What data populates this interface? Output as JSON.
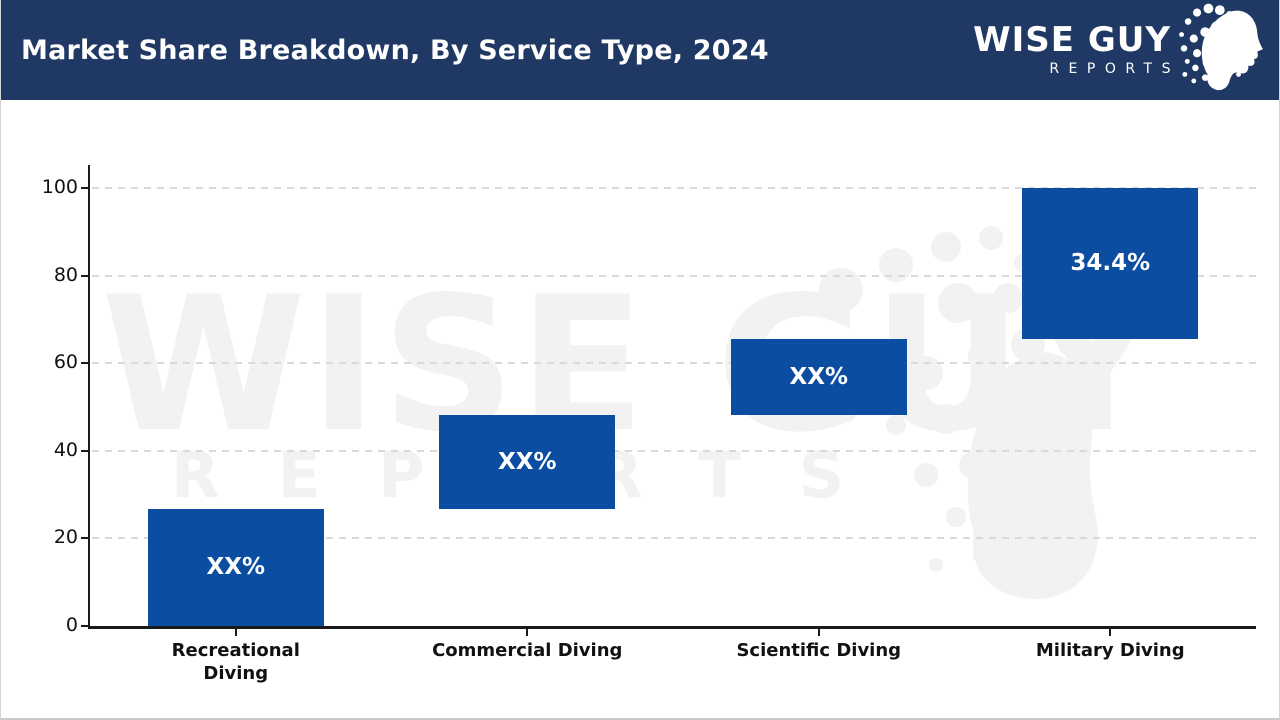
{
  "header": {
    "title": "Market Share Breakdown, By Service Type, 2024",
    "bg_color": "#1f3864",
    "logo": {
      "line1": "WISE GUY",
      "line2": "REPORTS"
    }
  },
  "watermark": {
    "line1": "WISE GUY",
    "line2": "REPORTS"
  },
  "chart_data": {
    "type": "bar",
    "subtype": "waterfall-segments",
    "title": "Market Share Breakdown, By Service Type, 2024",
    "categories": [
      "Recreational\nDiving",
      "Commercial Diving",
      "Scientific Diving",
      "Military Diving"
    ],
    "segments": [
      {
        "category": "Recreational\nDiving",
        "start": 0,
        "end": 26.8,
        "value": 26.8,
        "label": "XX%"
      },
      {
        "category": "Commercial Diving",
        "start": 26.8,
        "end": 48.2,
        "value": 21.4,
        "label": "XX%"
      },
      {
        "category": "Scientific Diving",
        "start": 48.2,
        "end": 65.6,
        "value": 17.4,
        "label": "XX%"
      },
      {
        "category": "Military Diving",
        "start": 65.6,
        "end": 100,
        "value": 34.4,
        "label": "34.4%"
      }
    ],
    "yticks": [
      0,
      20,
      40,
      60,
      80,
      100
    ],
    "ylim": [
      0,
      105
    ],
    "xlabel": "",
    "ylabel": "",
    "grid": "horizontal-dashed",
    "legend": "none",
    "bar_color": "#0b4da1",
    "bar_label_color": "#ffffff",
    "grid_color": "#d9d9d9"
  }
}
